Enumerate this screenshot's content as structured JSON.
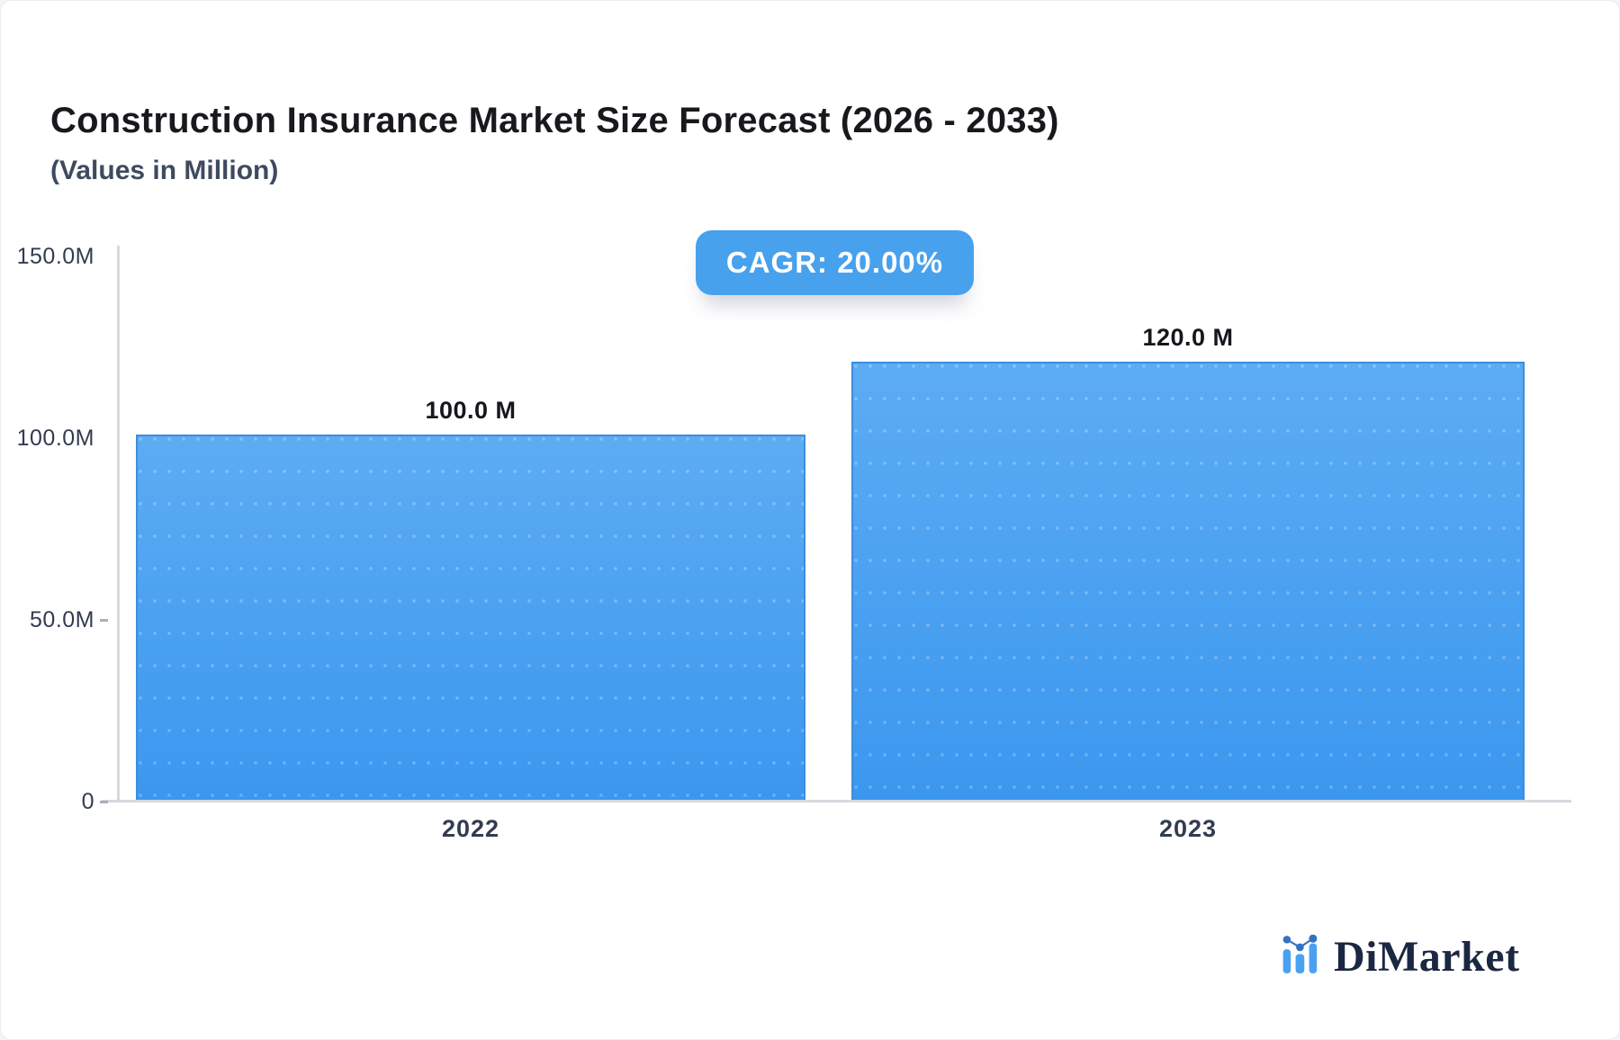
{
  "header": {
    "title": "Construction Insurance Market Size Forecast (2026 - 2033)",
    "subtitle": "(Values in Million)",
    "cagr_label": "CAGR: 20.00%"
  },
  "chart_data": {
    "type": "bar",
    "title": "Construction Insurance Market Size Forecast (2026 - 2033)",
    "subtitle": "(Values in Million)",
    "unit": "Million",
    "cagr_percent": 20.0,
    "categories": [
      "2022",
      "2023"
    ],
    "values": [
      100.0,
      120.0
    ],
    "bar_labels": [
      "100.0 M",
      "120.0 M"
    ],
    "xlabel": "",
    "ylabel": "",
    "ylim": [
      0,
      150
    ],
    "y_ticks": [
      {
        "label": "150.0M",
        "value": 150,
        "dash": false
      },
      {
        "label": "100.0M",
        "value": 100,
        "dash": false
      },
      {
        "label": "50.0M",
        "value": 50,
        "dash": true
      },
      {
        "label": "0",
        "value": 0,
        "dash": true
      }
    ],
    "grid": false,
    "legend": false
  },
  "brand": {
    "name": "DiMarket"
  },
  "colors": {
    "bar_top": "#5cacf3",
    "bar_bottom": "#3b97ef",
    "bar_border": "#3e8edd",
    "badge_bg": "#47a1ed",
    "badge_text": "#ffffff",
    "title_text": "#17191d",
    "subtitle_text": "#3e4a5e",
    "axis_text": "#323c50",
    "axis_line": "#d6d9de",
    "brand_navy": "#1c2742",
    "brand_blue": "#4aa1f2",
    "brand_dot": "#3472c4"
  }
}
